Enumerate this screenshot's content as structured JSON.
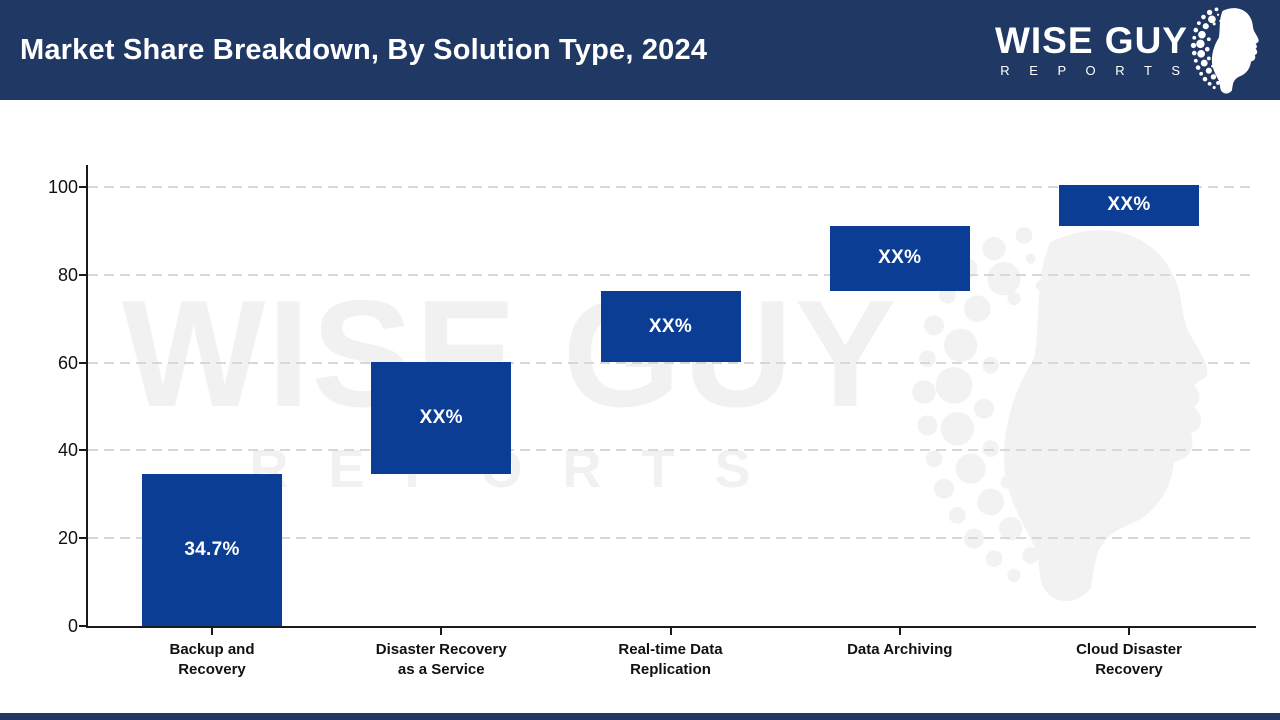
{
  "header": {
    "title": "Market Share Breakdown, By Solution Type, 2024",
    "logo": {
      "line1": "WISE GUY",
      "line2": "R E P O R T S"
    }
  },
  "watermark": {
    "line1": "WISE GUY",
    "line2": "REPORTS"
  },
  "colors": {
    "header_bg": "#1f3864",
    "footer_bg": "#1f3864",
    "bar": "#0b3d94",
    "bar_label": "#ffffff",
    "axis": "#1a1a1a",
    "grid": "#d8d8d8",
    "tick_text": "#111111",
    "watermark": "#f1f1f1"
  },
  "chart_data": {
    "type": "bar",
    "variant": "waterfall",
    "title": "Market Share Breakdown, By Solution Type, 2024",
    "xlabel": "",
    "ylabel": "",
    "ylim": [
      0,
      104
    ],
    "yticks": [
      0,
      20,
      40,
      60,
      80,
      100
    ],
    "grid": "horizontal-dashed",
    "categories": [
      "Backup and Recovery",
      "Disaster Recovery as a Service",
      "Real-time Data Replication",
      "Data Archiving",
      "Cloud Disaster Recovery"
    ],
    "category_lines": [
      [
        "Backup and",
        "Recovery"
      ],
      [
        "Disaster Recovery",
        "as a Service"
      ],
      [
        "Real-time Data",
        "Replication"
      ],
      [
        "Data Archiving"
      ],
      [
        "Cloud Disaster",
        "Recovery"
      ]
    ],
    "segments": [
      {
        "category": "Backup and Recovery",
        "start": 0,
        "end": 34.7,
        "label": "34.7%"
      },
      {
        "category": "Disaster Recovery as a Service",
        "start": 34.7,
        "end": 60.1,
        "label": "XX%"
      },
      {
        "category": "Real-time Data Replication",
        "start": 60.1,
        "end": 76.3,
        "label": "XX%"
      },
      {
        "category": "Data Archiving",
        "start": 76.3,
        "end": 91.2,
        "label": "XX%"
      },
      {
        "category": "Cloud Disaster Recovery",
        "start": 91.2,
        "end": 100.4,
        "label": "XX%"
      }
    ]
  }
}
